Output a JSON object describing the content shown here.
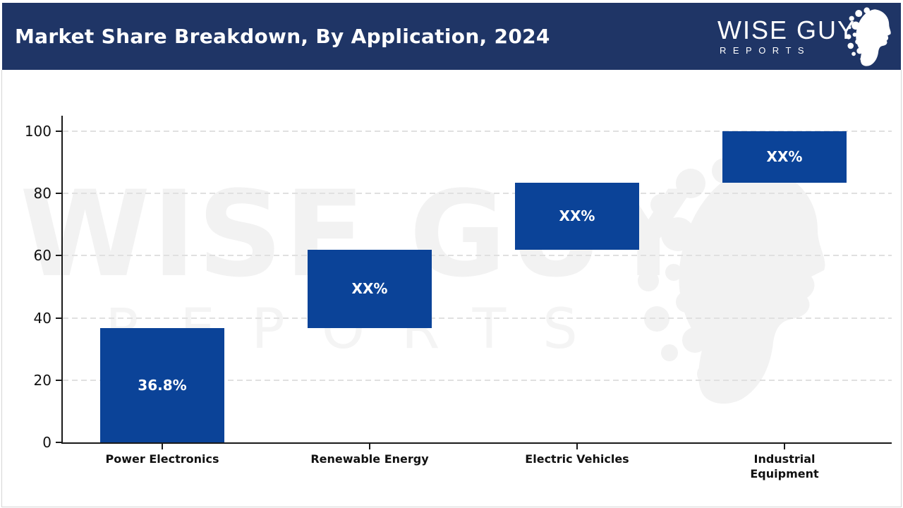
{
  "header": {
    "title": "Market Share Breakdown, By Application, 2024",
    "bg_color": "#1f3566",
    "logo": {
      "line1": "WISE GUY",
      "line2": "REPORTS"
    }
  },
  "watermark": {
    "line1": "WISE GUY",
    "line2": "REPORTS"
  },
  "chart_data": {
    "type": "bar",
    "subtype": "waterfall",
    "title": "Market Share Breakdown, By Application, 2024",
    "categories": [
      "Power Electronics",
      "Renewable Energy",
      "Electric Vehicles",
      "Industrial Equipment"
    ],
    "segments": [
      {
        "category": "Power Electronics",
        "tick_label": "Power Electronics",
        "start": 0,
        "end": 36.8,
        "label": "36.8%"
      },
      {
        "category": "Renewable Energy",
        "tick_label": "Renewable Energy",
        "start": 36.8,
        "end": 62,
        "label": "XX%"
      },
      {
        "category": "Electric Vehicles",
        "tick_label": "Electric Vehicles",
        "start": 62,
        "end": 83.5,
        "label": "XX%"
      },
      {
        "category": "Industrial Equipment",
        "tick_label": "Industrial\nEquipment",
        "start": 83.5,
        "end": 100,
        "label": "XX%"
      }
    ],
    "y_ticks": [
      0,
      20,
      40,
      60,
      80,
      100
    ],
    "ylim": [
      0,
      105
    ],
    "grid": "horizontal-dashed",
    "legend": "none",
    "bar_color": "#0b4398",
    "bar_label_color": "#ffffff",
    "grid_color": "#e0e0e0",
    "axis_color": "#1a1a1a",
    "tick_label_color": "#111111"
  }
}
